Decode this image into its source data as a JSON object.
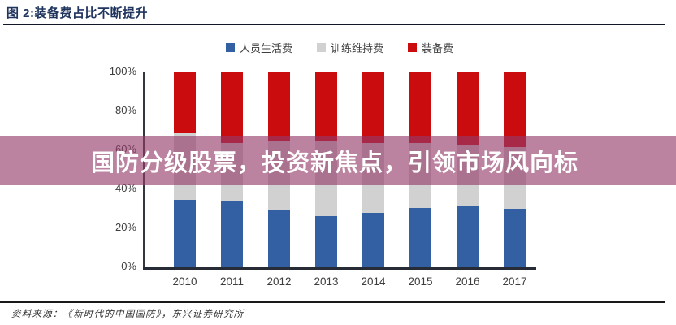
{
  "header": {
    "title": "图 2:装备费占比不断提升"
  },
  "banner": {
    "text": "国防分级股票，投资新焦点，引领市场风向标",
    "background_rgba": "rgba(148,58,104,0.63)",
    "text_color": "#ffffff"
  },
  "footer": {
    "source": "资料来源：《新时代的中国国防》，东兴证券研究所"
  },
  "chart_data": {
    "type": "bar",
    "stacked": true,
    "percent_stack": true,
    "title": "图 2:装备费占比不断提升",
    "categories": [
      "2010",
      "2011",
      "2012",
      "2013",
      "2014",
      "2015",
      "2016",
      "2017"
    ],
    "series": [
      {
        "name": "人员生活费",
        "color": "#335fa3",
        "values": [
          34.0,
          33.6,
          28.7,
          25.8,
          27.5,
          30.1,
          30.7,
          29.6
        ]
      },
      {
        "name": "训练维持费",
        "color": "#d2d1d1",
        "values": [
          34.4,
          29.9,
          35.3,
          38.4,
          36.0,
          33.2,
          31.6,
          31.7
        ]
      },
      {
        "name": "装备费",
        "color": "#cb0c0f",
        "values": [
          31.6,
          36.5,
          36.0,
          35.8,
          36.5,
          36.7,
          37.7,
          38.7
        ]
      }
    ],
    "y_ticks": [
      "0%",
      "20%",
      "40%",
      "60%",
      "80%",
      "100%"
    ],
    "ylim": [
      0,
      100
    ],
    "grid": true,
    "legend_position": "top",
    "xlabel": "",
    "ylabel": ""
  }
}
